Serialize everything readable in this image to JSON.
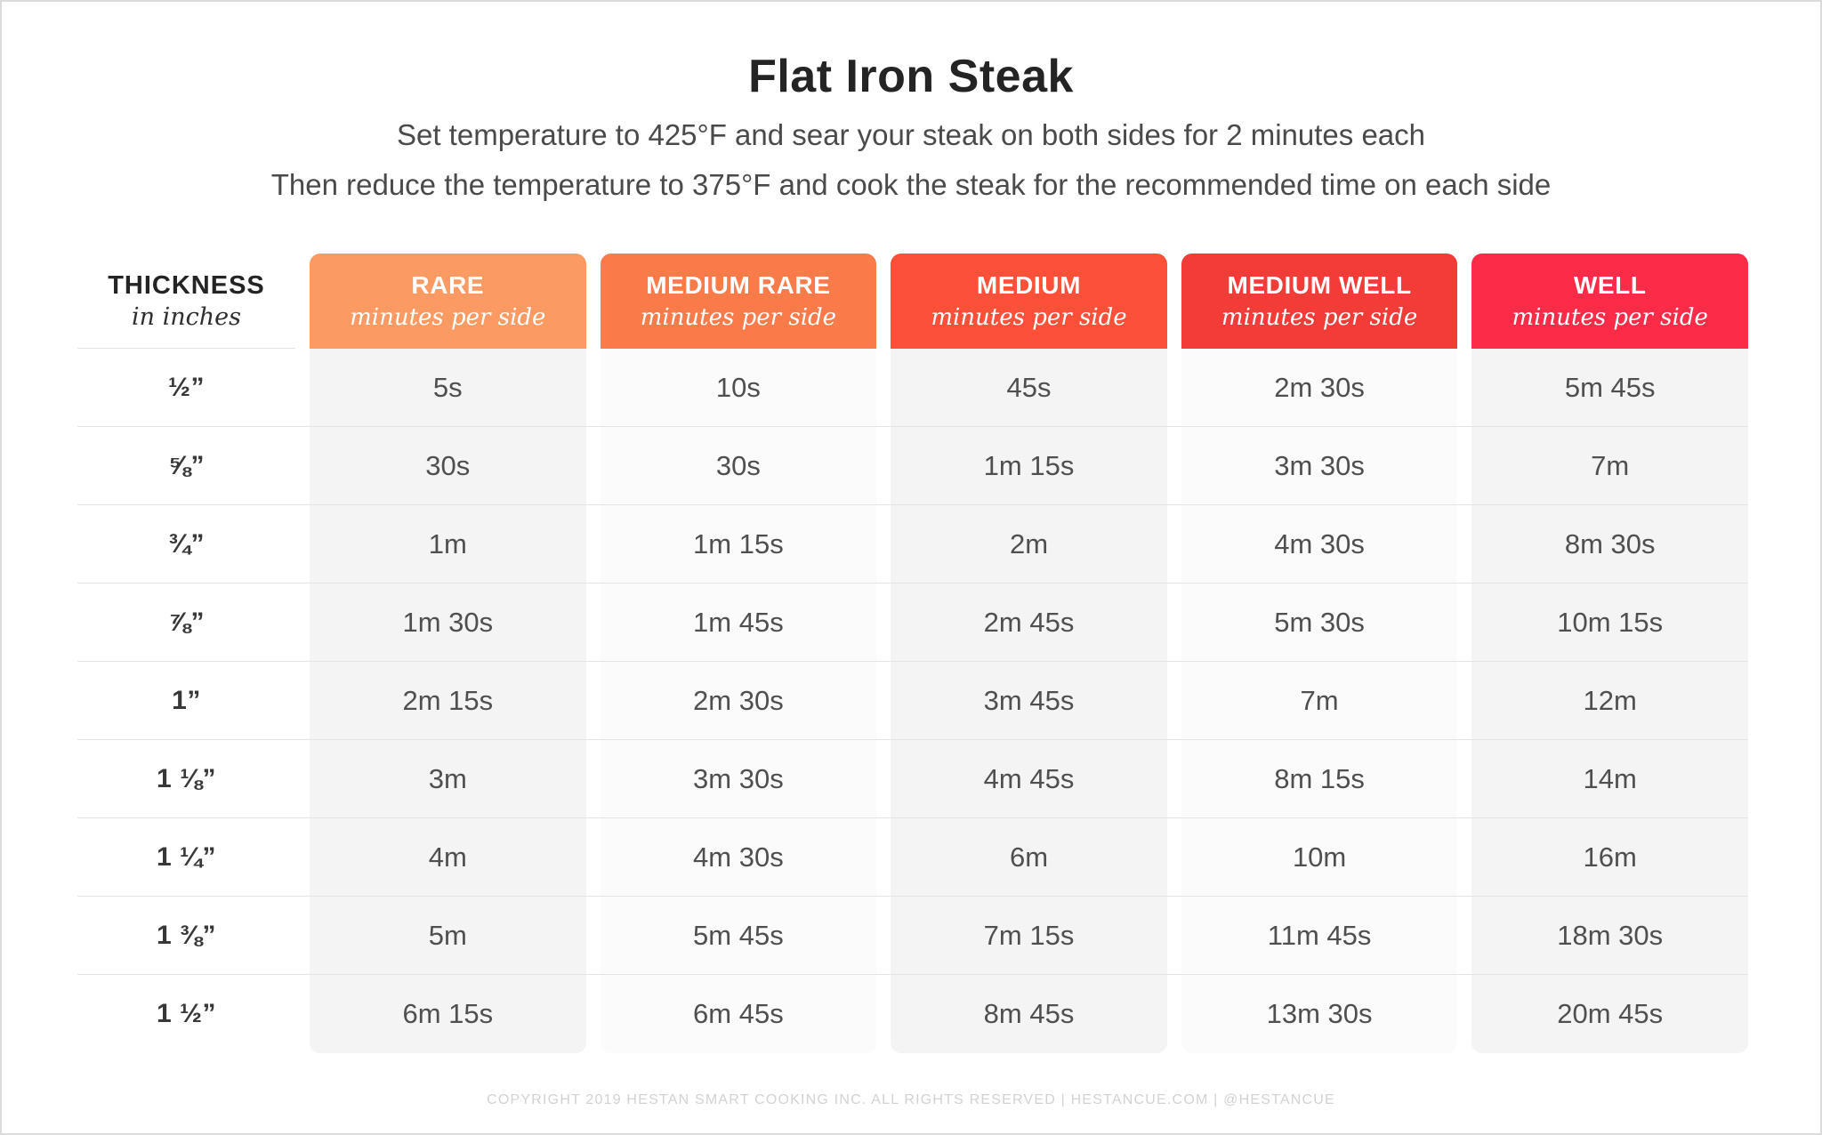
{
  "page": {
    "title": "Flat Iron Steak",
    "subtitle_line1": "Set temperature to 425°F and sear your steak on both sides for 2 minutes each",
    "subtitle_line2": "Then reduce the temperature to 375°F and cook the steak for the recommended time on each side",
    "footer": "COPYRIGHT 2019 HESTAN SMART COOKING INC. ALL RIGHTS RESERVED | HESTANCUE.COM | @HESTANCUE"
  },
  "table": {
    "thickness_header": {
      "label": "THICKNESS",
      "sublabel": "in inches"
    },
    "doneness_columns": [
      {
        "label": "RARE",
        "sublabel": "minutes per side",
        "color": "#FC9A63",
        "body_tint": "#F4F4F4"
      },
      {
        "label": "MEDIUM RARE",
        "sublabel": "minutes per side",
        "color": "#F87B49",
        "body_tint": "#FBFBFB"
      },
      {
        "label": "MEDIUM",
        "sublabel": "minutes per side",
        "color": "#FC5138",
        "body_tint": "#F4F4F4"
      },
      {
        "label": "MEDIUM WELL",
        "sublabel": "minutes per side",
        "color": "#F33B38",
        "body_tint": "#FBFBFB"
      },
      {
        "label": "WELL",
        "sublabel": "minutes per side",
        "color": "#FC2B48",
        "body_tint": "#F4F4F4"
      }
    ],
    "rows": [
      {
        "thickness": "½”",
        "values": [
          "5s",
          "10s",
          "45s",
          "2m 30s",
          "5m 45s"
        ]
      },
      {
        "thickness": "⅝”",
        "values": [
          "30s",
          "30s",
          "1m 15s",
          "3m 30s",
          "7m"
        ]
      },
      {
        "thickness": "¾”",
        "values": [
          "1m",
          "1m 15s",
          "2m",
          "4m 30s",
          "8m 30s"
        ]
      },
      {
        "thickness": "⅞”",
        "values": [
          "1m 30s",
          "1m 45s",
          "2m 45s",
          "5m 30s",
          "10m 15s"
        ]
      },
      {
        "thickness": "1”",
        "values": [
          "2m 15s",
          "2m 30s",
          "3m 45s",
          "7m",
          "12m"
        ]
      },
      {
        "thickness": "1 ⅛”",
        "values": [
          "3m",
          "3m 30s",
          "4m 45s",
          "8m 15s",
          "14m"
        ]
      },
      {
        "thickness": "1 ¼”",
        "values": [
          "4m",
          "4m 30s",
          "6m",
          "10m",
          "16m"
        ]
      },
      {
        "thickness": "1 ⅜”",
        "values": [
          "5m",
          "5m 45s",
          "7m 15s",
          "11m 45s",
          "18m 30s"
        ]
      },
      {
        "thickness": "1 ½”",
        "values": [
          "6m 15s",
          "6m 45s",
          "8m 45s",
          "13m 30s",
          "20m 45s"
        ]
      }
    ]
  },
  "chart_data": {
    "type": "table",
    "title": "Flat Iron Steak",
    "xlabel": "Thickness in inches",
    "ylabel": "Cook time (minutes per side)",
    "categories": [
      "½",
      "⅝",
      "¾",
      "⅞",
      "1",
      "1 ⅛",
      "1 ¼",
      "1 ⅜",
      "1 ½"
    ],
    "series": [
      {
        "name": "Rare",
        "values": [
          "5s",
          "30s",
          "1m",
          "1m 30s",
          "2m 15s",
          "3m",
          "4m",
          "5m",
          "6m 15s"
        ]
      },
      {
        "name": "Medium Rare",
        "values": [
          "10s",
          "30s",
          "1m 15s",
          "1m 45s",
          "2m 30s",
          "3m 30s",
          "4m 30s",
          "5m 45s",
          "6m 45s"
        ]
      },
      {
        "name": "Medium",
        "values": [
          "45s",
          "1m 15s",
          "2m",
          "2m 45s",
          "3m 45s",
          "4m 45s",
          "6m",
          "7m 15s",
          "8m 45s"
        ]
      },
      {
        "name": "Medium Well",
        "values": [
          "2m 30s",
          "3m 30s",
          "4m 30s",
          "5m 30s",
          "7m",
          "8m 15s",
          "10m",
          "11m 45s",
          "13m 30s"
        ]
      },
      {
        "name": "Well",
        "values": [
          "5m 45s",
          "7m",
          "8m 30s",
          "10m 15s",
          "12m",
          "14m",
          "16m",
          "18m 30s",
          "20m 45s"
        ]
      }
    ],
    "notes": [
      "Set temperature to 425°F and sear your steak on both sides for 2 minutes each",
      "Then reduce the temperature to 375°F and cook the steak for the recommended time on each side"
    ]
  }
}
